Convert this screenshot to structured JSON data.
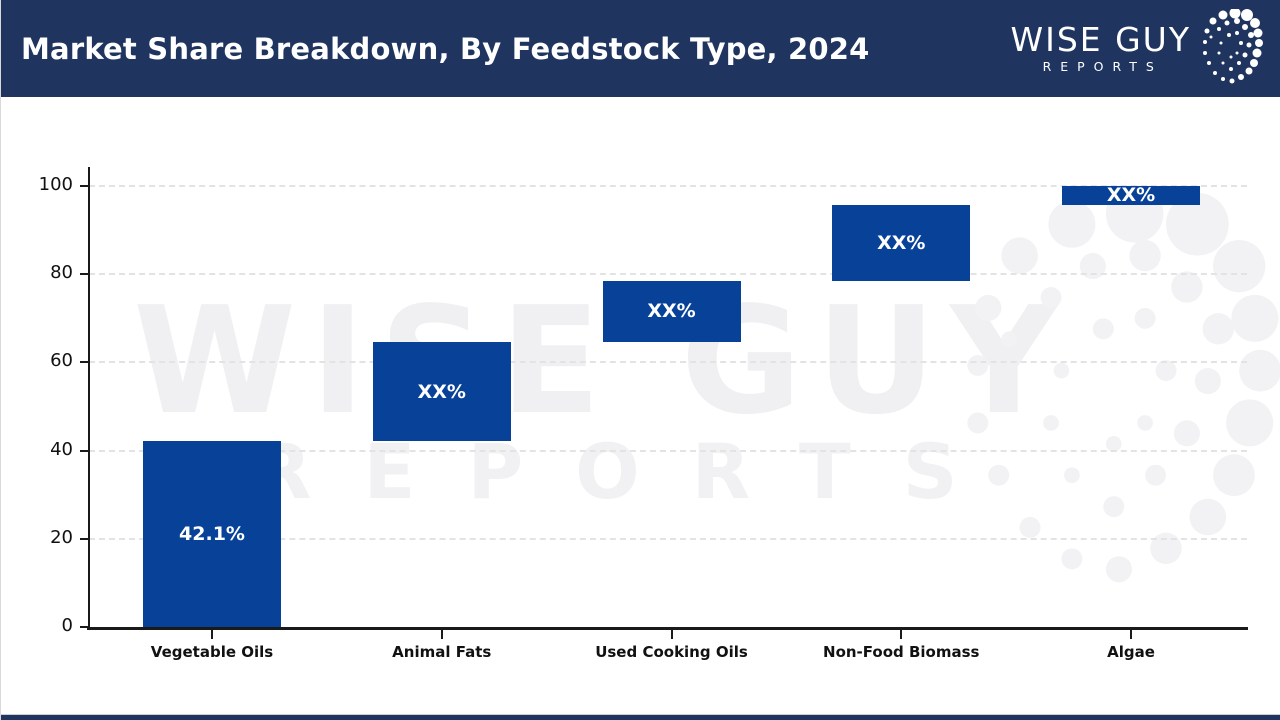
{
  "header": {
    "title": "Market Share Breakdown, By Feedstock Type, 2024",
    "bg_color": "#1f3560",
    "logo": {
      "line1": "WISE GUY",
      "line2": "REPORTS"
    }
  },
  "watermark": {
    "line1": "WISE GUY",
    "line2": "REPORTS"
  },
  "chart_data": {
    "type": "bar",
    "subtype": "waterfall",
    "title": "Market Share Breakdown, By Feedstock Type, 2024",
    "categories": [
      "Vegetable Oils",
      "Animal Fats",
      "Used Cooking Oils",
      "Non-Food Biomass",
      "Algae"
    ],
    "segments": [
      {
        "category": "Vegetable Oils",
        "start": 0,
        "end": 42.1,
        "label": "42.1%"
      },
      {
        "category": "Animal Fats",
        "start": 42.1,
        "end": 64.6,
        "label": "XX%"
      },
      {
        "category": "Used Cooking Oils",
        "start": 64.6,
        "end": 78.5,
        "label": "XX%"
      },
      {
        "category": "Non-Food Biomass",
        "start": 78.5,
        "end": 95.7,
        "label": "XX%"
      },
      {
        "category": "Algae",
        "start": 95.7,
        "end": 100,
        "label": "XX%"
      }
    ],
    "xlabel": "",
    "ylabel": "",
    "ylim": [
      0,
      100
    ],
    "yticks": [
      0,
      20,
      40,
      60,
      80,
      100
    ],
    "grid": "horizontal dashed",
    "legend": "none",
    "bar_color": "#084298",
    "bar_label_color": "#ffffff",
    "axis_color": "#1a1a1a"
  }
}
